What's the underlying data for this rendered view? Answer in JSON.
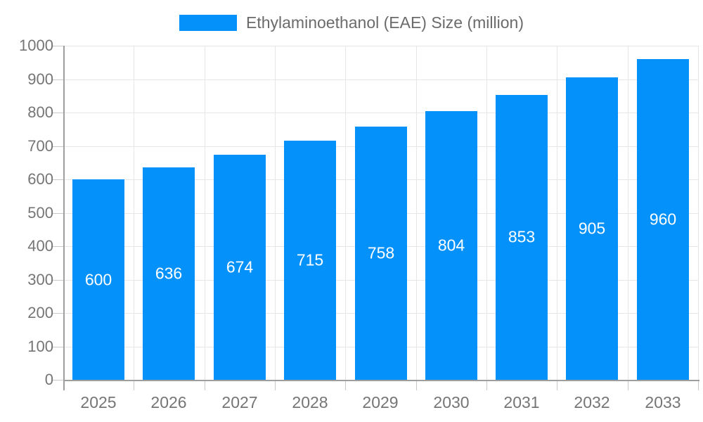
{
  "chart_data": {
    "type": "bar",
    "title": "Ethylaminoethanol (EAE) Size (million)",
    "legend_position": "top",
    "categories": [
      "2025",
      "2026",
      "2027",
      "2028",
      "2029",
      "2030",
      "2031",
      "2032",
      "2033"
    ],
    "series": [
      {
        "name": "Ethylaminoethanol (EAE) Size (million)",
        "values": [
          600,
          636,
          674,
          715,
          758,
          804,
          853,
          905,
          960
        ]
      }
    ],
    "values": [
      600,
      636,
      674,
      715,
      758,
      804,
      853,
      905,
      960
    ],
    "value_labels": [
      "600",
      "636",
      "674",
      "715",
      "758",
      "804",
      "853",
      "905",
      "960"
    ],
    "xlabel": "",
    "ylabel": "",
    "ylim": [
      0,
      1000
    ],
    "ytick_interval": 100,
    "yticks": [
      0,
      100,
      200,
      300,
      400,
      500,
      600,
      700,
      800,
      900,
      1000
    ],
    "grid": true,
    "colors": {
      "bar": "#0591fa",
      "gridline": "#e6e6e6",
      "axis_line": "#9e9e9e",
      "tick": "#c9c9c9",
      "axis_text": "#757575",
      "legend_text": "#6b6b6b",
      "value_label_text": "#ffffff",
      "background": "#ffffff"
    }
  }
}
